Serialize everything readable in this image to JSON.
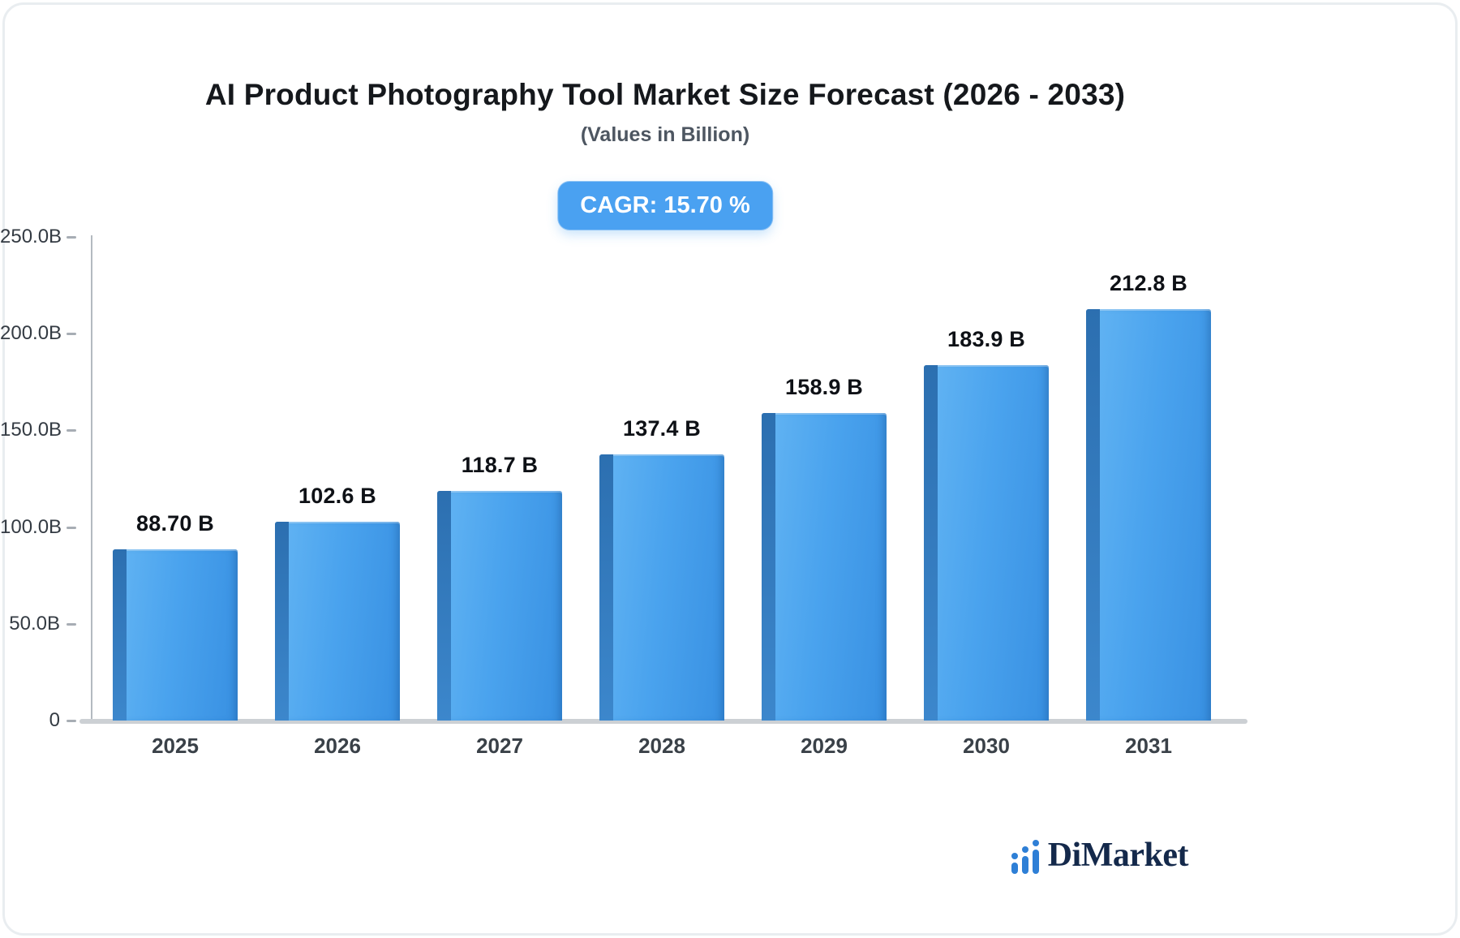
{
  "header": {
    "title": "AI Product Photography Tool Market Size Forecast (2026 - 2033)",
    "subtitle": "(Values in Billion)",
    "cagr_badge": "CAGR: 15.70 %"
  },
  "chart_data": {
    "type": "bar",
    "title": "AI Product Photography Tool Market Size Forecast (2026 - 2033)",
    "subtitle": "(Values in Billion)",
    "categories": [
      "2025",
      "2026",
      "2027",
      "2028",
      "2029",
      "2030",
      "2031"
    ],
    "values": [
      88.7,
      102.6,
      118.7,
      137.4,
      158.9,
      183.9,
      212.8
    ],
    "value_labels": [
      "88.70 B",
      "102.6 B",
      "118.7 B",
      "137.4 B",
      "158.9 B",
      "183.9 B",
      "212.8 B"
    ],
    "xlabel": "",
    "ylabel": "",
    "ylim": [
      0,
      250
    ],
    "yticks": [
      {
        "value": 250,
        "label": "250.0B"
      },
      {
        "value": 200,
        "label": "200.0B"
      },
      {
        "value": 150,
        "label": "150.0B"
      },
      {
        "value": 100,
        "label": "100.0B"
      },
      {
        "value": 50,
        "label": "50.0B"
      },
      {
        "value": 0,
        "label": "0"
      }
    ],
    "grid": false,
    "legend": false,
    "cagr": "15.70 %",
    "colors": {
      "bar_face_light": "#64b5f3",
      "bar_face_dark": "#3890e2",
      "bar_side": "#2c6fb0",
      "badge_bg": "#4aa1f1",
      "axis": "#b4bac0",
      "baseline": "#ccd0d4"
    }
  },
  "footer": {
    "brand": "DiMarket"
  }
}
